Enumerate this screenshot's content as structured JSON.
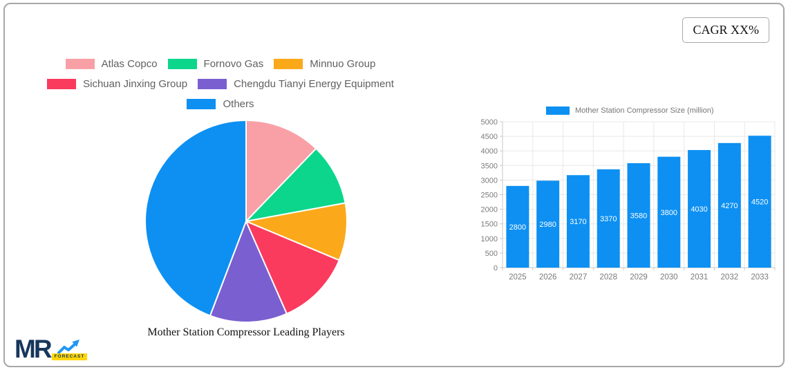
{
  "card": {
    "cagr_badge": "CAGR XX%"
  },
  "logo": {
    "mr": "MR",
    "forecast": "FORECAST",
    "navy": "#17365C",
    "yellow": "#FFD60A",
    "arrow_blue": "#2196F3"
  },
  "chart_data": [
    {
      "type": "pie",
      "title": "Mother Station Compressor Leading Players",
      "labels": [
        "Atlas Copco",
        "Fornovo Gas",
        "Minnuo Group",
        "Sichuan Jinxing Group",
        "Chengdu Tianyi Energy Equipment",
        "Others"
      ],
      "values": [
        12.2,
        9.9,
        9.2,
        12.1,
        12.4,
        44.2
      ],
      "colors": [
        "#F8A0A6",
        "#0CD68C",
        "#FBA91B",
        "#FA3B5E",
        "#7A5FD0",
        "#0D90F2"
      ],
      "start_angle_deg": 0,
      "direction": "clockwise",
      "slice_border_color": "#FFFFFF",
      "legend_position": "top",
      "legend_rows": [
        [
          "Atlas Copco",
          "Fornovo Gas",
          "Minnuo Group"
        ],
        [
          "Sichuan Jinxing Group",
          "Chengdu Tianyi Energy Equipment"
        ],
        [
          "Others"
        ]
      ]
    },
    {
      "type": "bar",
      "legend_label": "Mother Station Compressor Size (million)",
      "categories": [
        "2025",
        "2026",
        "2027",
        "2028",
        "2029",
        "2030",
        "2031",
        "2032",
        "2033"
      ],
      "values": [
        2800,
        2980,
        3170,
        3370,
        3580,
        3800,
        4030,
        4270,
        4520
      ],
      "bar_color": "#0D90F2",
      "value_label_color": "#FFFFFF",
      "ylim": [
        0,
        5000
      ],
      "ytick_step": 500,
      "grid": true,
      "legend_position": "top"
    }
  ]
}
